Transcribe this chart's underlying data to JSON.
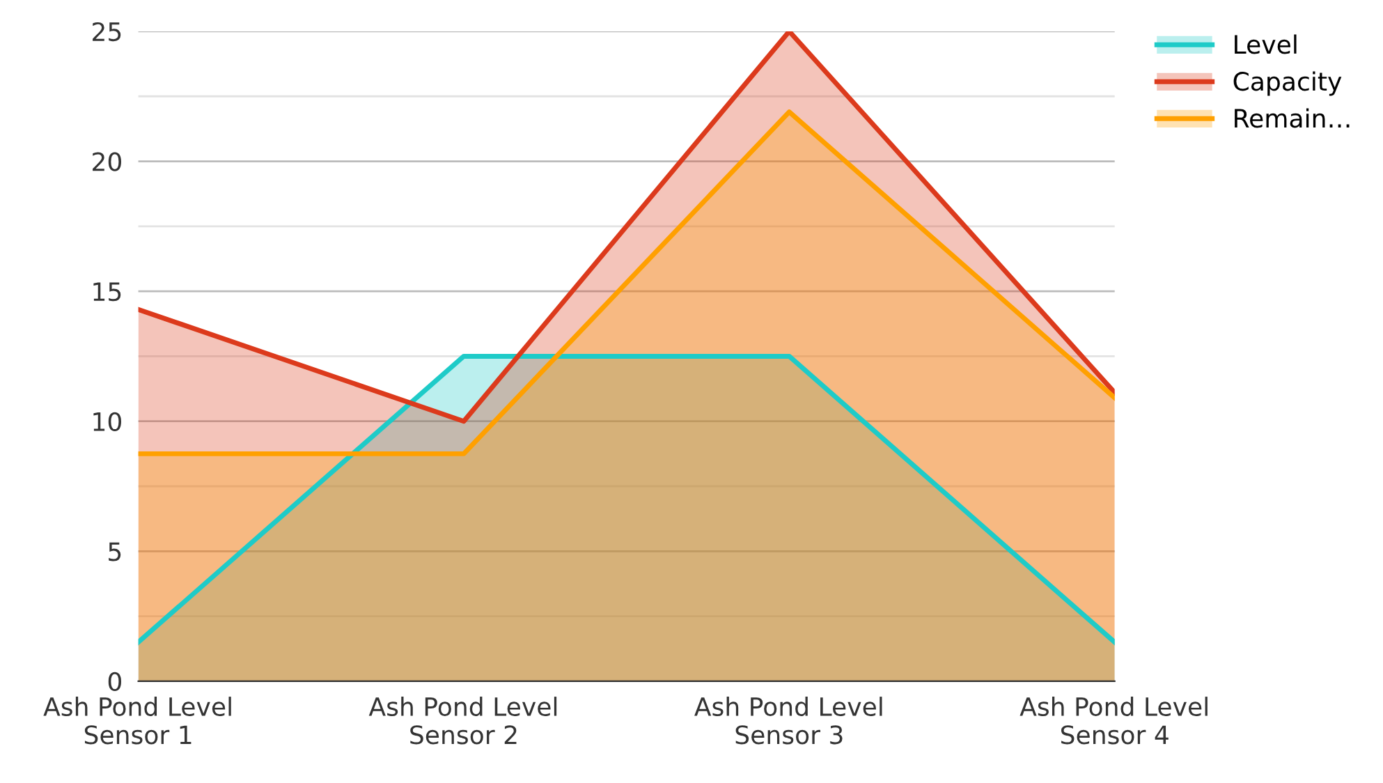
{
  "chart_data": {
    "type": "area",
    "categories": [
      "Ash Pond Level\nSensor 1",
      "Ash Pond Level\nSensor 2",
      "Ash Pond Level\nSensor 3",
      "Ash Pond Level\nSensor 4"
    ],
    "series": [
      {
        "name": "Level",
        "color": "#1ecbc8",
        "values": [
          1.5,
          12.5,
          12.5,
          1.5
        ]
      },
      {
        "name": "Capacity",
        "color": "#dc3a1c",
        "values": [
          14.3,
          10,
          25,
          11.1
        ]
      },
      {
        "name": "Remain…",
        "color": "#ffa000",
        "values": [
          8.75,
          8.75,
          21.9,
          10.9
        ]
      }
    ],
    "ylim": [
      0,
      25
    ],
    "yticks": [
      0,
      {
        "value": 2.5,
        "label": null
      },
      5,
      {
        "value": 7.5,
        "label": null
      },
      10,
      {
        "value": 12.5,
        "label": null
      },
      15,
      {
        "value": 17.5,
        "label": null
      },
      20,
      {
        "value": 22.5,
        "label": null
      },
      25
    ],
    "grid": "y",
    "legend": "top right"
  }
}
